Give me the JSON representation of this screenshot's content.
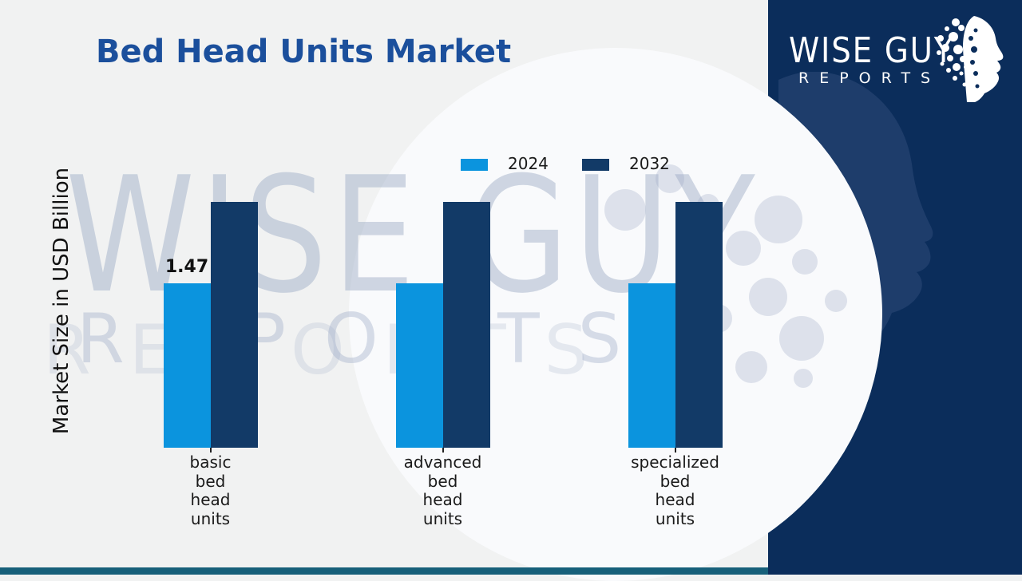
{
  "header": {
    "title": "Bed Head Units Market"
  },
  "y_axis": {
    "label": "Market Size in USD Billion"
  },
  "logo": {
    "line1": "WISE GUY",
    "line2": "REPORTS"
  },
  "watermark": {
    "line1": "WISE GUY",
    "line2": "REPORTS"
  },
  "colors": {
    "background": "#f1f2f2",
    "title_blue": "#1b4f9c",
    "bar_2024": "#0b94de",
    "bar_2032": "#123a67",
    "navy_panel": "#0b2d5b",
    "teal_strip": "#17607a"
  },
  "chart_data": {
    "type": "bar",
    "title": "Bed Head Units Market",
    "xlabel": "",
    "ylabel": "Market Size in USD Billion",
    "categories": [
      "basic bed head units",
      "advanced bed head units",
      "specialized bed head units"
    ],
    "series": [
      {
        "name": "2024",
        "color": "#0b94de",
        "values": [
          1.47,
          1.47,
          1.47
        ]
      },
      {
        "name": "2032",
        "color": "#123a67",
        "values": [
          2.2,
          2.2,
          2.2
        ]
      }
    ],
    "data_labels": [
      {
        "series": "2024",
        "category_index": 0,
        "text": "1.47"
      }
    ],
    "legend_position": "top",
    "grid": false,
    "ylim": [
      0,
      2.4
    ]
  }
}
